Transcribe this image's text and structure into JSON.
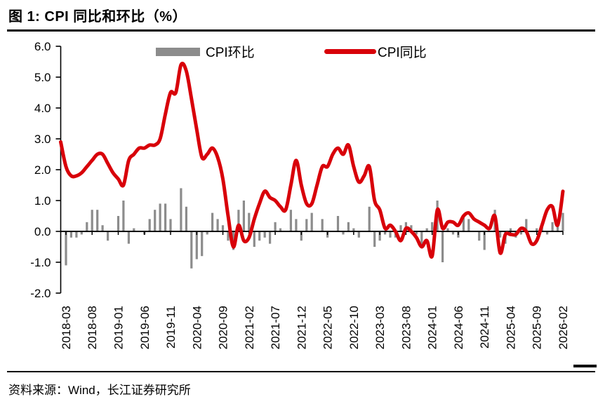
{
  "header": {
    "title": "图 1: CPI 同比和环比（%）"
  },
  "legend": {
    "mom_label": "CPI环比",
    "yoy_label": "CPI同比"
  },
  "footer": {
    "source": "资料来源：Wind，长江证券研究所"
  },
  "colors": {
    "line_red": "#D80009",
    "bar_gray": "#8C8C8C",
    "axis_black": "#000000"
  },
  "chart_data": {
    "type": "bar+line",
    "title": "图 1: CPI 同比和环比（%）",
    "unit": "%",
    "x_start": "2018-02",
    "x_end": "2026-02",
    "freq": "monthly",
    "ylim": [
      -2.0,
      6.0
    ],
    "ytick_step": 1.0,
    "grid": "off",
    "legend_position": "top-inside",
    "ytick_labels": [
      "6.0",
      "5.0",
      "4.0",
      "3.0",
      "2.0",
      "1.0",
      "0.0",
      "-1.0",
      "-2.0"
    ],
    "xtick_labels": [
      "2018-03",
      "2018-08",
      "2019-01",
      "2019-06",
      "2019-11",
      "2020-04",
      "2020-09",
      "2021-02",
      "2021-07",
      "2021-12",
      "2022-05",
      "2022-10",
      "2023-03",
      "2023-08",
      "2024-01",
      "2024-06",
      "2024-11",
      "2025-04",
      "2025-09",
      "2026-02"
    ],
    "series": [
      {
        "name": "CPI环比",
        "type": "bar",
        "color": "#8C8C8C",
        "values": [
          null,
          -1.1,
          -0.2,
          -0.2,
          -0.1,
          0.3,
          0.7,
          0.7,
          0.2,
          -0.3,
          0.0,
          0.5,
          1.0,
          -0.4,
          0.1,
          0.0,
          -0.1,
          0.4,
          0.7,
          0.9,
          0.9,
          0.4,
          0.0,
          1.4,
          0.8,
          -1.2,
          -0.9,
          -0.8,
          -0.1,
          0.6,
          0.4,
          0.2,
          -0.3,
          -0.6,
          0.7,
          1.0,
          0.6,
          -0.5,
          -0.3,
          -0.2,
          -0.4,
          0.3,
          0.1,
          0.0,
          0.7,
          0.4,
          -0.3,
          0.4,
          0.6,
          0.0,
          0.4,
          -0.2,
          0.0,
          0.5,
          -0.1,
          0.3,
          0.1,
          -0.2,
          0.0,
          0.8,
          -0.5,
          -0.3,
          -0.1,
          -0.2,
          -0.2,
          0.2,
          0.3,
          0.2,
          -0.1,
          -0.5,
          0.1,
          0.3,
          1.0,
          -1.0,
          0.1,
          -0.1,
          -0.2,
          0.5,
          0.4,
          0.0,
          -0.3,
          -0.6,
          0.0,
          0.7,
          -0.2,
          -0.4,
          0.1,
          -0.2,
          -0.1,
          0.4,
          0.0,
          0.1,
          0.2,
          -0.1,
          0.3,
          0.2,
          0.6
        ]
      },
      {
        "name": "CPI同比",
        "type": "line",
        "color": "#D80009",
        "values": [
          2.9,
          2.1,
          1.8,
          1.8,
          1.9,
          2.1,
          2.3,
          2.5,
          2.5,
          2.2,
          1.9,
          1.7,
          1.5,
          2.3,
          2.5,
          2.7,
          2.7,
          2.8,
          2.8,
          3.0,
          3.8,
          4.5,
          4.5,
          5.4,
          5.2,
          4.3,
          3.3,
          2.4,
          2.5,
          2.7,
          2.4,
          1.7,
          0.5,
          -0.5,
          0.2,
          -0.3,
          -0.2,
          0.4,
          0.9,
          1.3,
          1.1,
          1.0,
          0.8,
          0.7,
          1.5,
          2.3,
          1.5,
          0.9,
          0.9,
          1.5,
          2.1,
          2.1,
          2.5,
          2.7,
          2.5,
          2.8,
          2.1,
          1.6,
          1.8,
          2.1,
          1.0,
          0.7,
          0.1,
          0.2,
          0.0,
          -0.3,
          0.1,
          0.0,
          -0.2,
          -0.5,
          -0.3,
          -0.8,
          0.7,
          0.1,
          0.3,
          0.3,
          0.2,
          0.5,
          0.6,
          0.4,
          0.3,
          0.2,
          0.1,
          0.5,
          -0.7,
          -0.1,
          -0.1,
          -0.1,
          0.1,
          0.0,
          -0.4,
          -0.3,
          0.2,
          0.7,
          0.8,
          0.2,
          1.3
        ]
      }
    ]
  }
}
